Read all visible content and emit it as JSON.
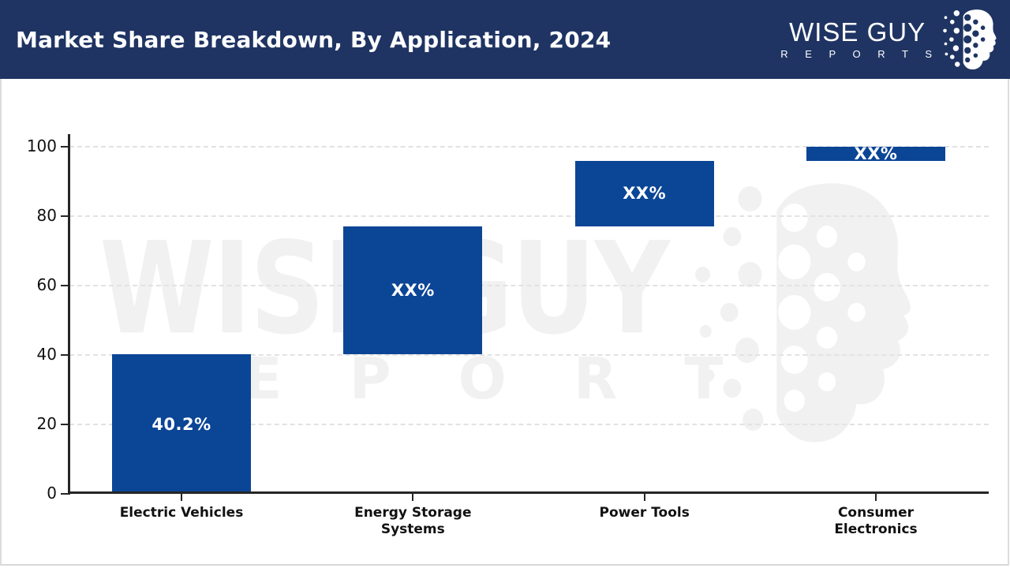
{
  "header": {
    "title": "Market Share Breakdown, By Application, 2024",
    "logo": {
      "brand": "WISE GUY",
      "sub": "R E P O R T S"
    }
  },
  "watermark": {
    "line1": "WISE GUY",
    "line2": "R E P O R T S"
  },
  "chart_data": {
    "type": "bar",
    "variant": "waterfall",
    "title": "Market Share Breakdown, By Application, 2024",
    "categories": [
      "Electric Vehicles",
      "Energy Storage\nSystems",
      "Power Tools",
      "Consumer\nElectronics"
    ],
    "segments": [
      {
        "category": "Electric Vehicles",
        "start": 0,
        "end": 40.2,
        "label": "40.2%"
      },
      {
        "category": "Energy Storage Systems",
        "start": 40.2,
        "end": 77,
        "label": "XX%"
      },
      {
        "category": "Power Tools",
        "start": 77,
        "end": 96,
        "label": "XX%"
      },
      {
        "category": "Consumer Electronics",
        "start": 96,
        "end": 100,
        "label": "XX%"
      }
    ],
    "ylim": [
      0,
      100
    ],
    "yticks": [
      0,
      20,
      40,
      60,
      80,
      100
    ],
    "xlabel": "",
    "ylabel": "",
    "grid": "horizontal-dashed",
    "legend": "none",
    "bar_color": "#0b4596",
    "bar_label_color": "#ffffff",
    "axis_color": "#262626",
    "header_color": "#1f3463",
    "watermark_color": "#f1f1f1"
  }
}
